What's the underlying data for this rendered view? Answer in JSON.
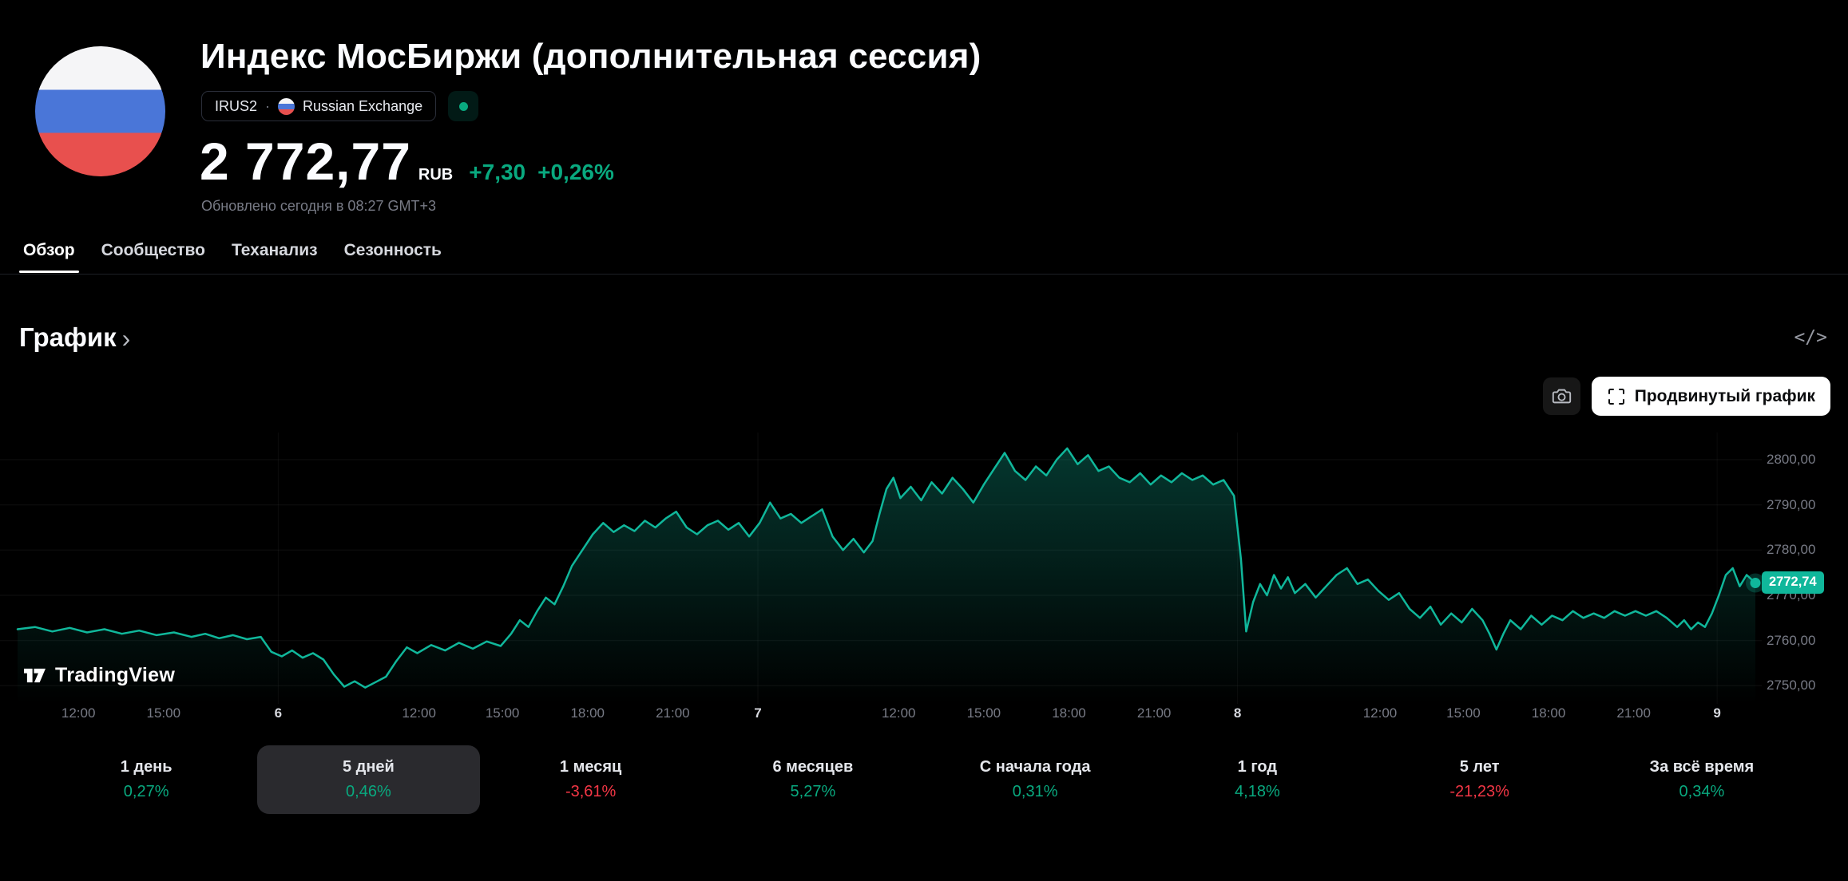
{
  "colors": {
    "bg": "#000000",
    "text_primary": "#fbfcff",
    "text_secondary": "#d6d8de",
    "text_muted": "#787b86",
    "green": "#09a97f",
    "red": "#f23645",
    "line": "#10b79b",
    "selected_bg": "#2a2a2e",
    "divider": "#1d2026",
    "badge_border": "#2a2e39"
  },
  "header": {
    "title": "Индекс МосБиржи (дополнительная сессия)",
    "symbol": "IRUS2",
    "dot_separator": "·",
    "exchange": "Russian Exchange",
    "price": "2 772,77",
    "currency": "RUB",
    "change_abs": "+7,30",
    "change_pct": "+0,26%",
    "updated": "Обновлено сегодня в 08:27 GMT+3"
  },
  "tabs": [
    {
      "label": "Обзор",
      "active": true
    },
    {
      "label": "Сообщество",
      "active": false
    },
    {
      "label": "Теханализ",
      "active": false
    },
    {
      "label": "Сезонность",
      "active": false
    }
  ],
  "chart_section": {
    "heading": "График",
    "chevron": "›",
    "embed_icon": "</>",
    "advanced_button_label": "Продвинутый график",
    "watermark": "TradingView"
  },
  "chart_data": {
    "type": "area",
    "series_name": "IRUS2",
    "title": "Индекс МосБиржи (дополнительная сессия) — 5 дней",
    "y_domain": [
      2746,
      2806
    ],
    "y_ticks": [
      2800,
      2790,
      2780,
      2770,
      2760,
      2750
    ],
    "y_tick_labels": [
      "2800,00",
      "2790,00",
      "2780,00",
      "2770,00",
      "2760,00",
      "2750,00"
    ],
    "last": {
      "value": 2772.74,
      "label": "2772,74"
    },
    "x_labels": [
      {
        "text": "12:00",
        "f": 0.035,
        "day": false
      },
      {
        "text": "15:00",
        "f": 0.084,
        "day": false
      },
      {
        "text": "6",
        "f": 0.15,
        "day": true
      },
      {
        "text": "12:00",
        "f": 0.231,
        "day": false
      },
      {
        "text": "15:00",
        "f": 0.279,
        "day": false
      },
      {
        "text": "18:00",
        "f": 0.328,
        "day": false
      },
      {
        "text": "21:00",
        "f": 0.377,
        "day": false
      },
      {
        "text": "7",
        "f": 0.426,
        "day": true
      },
      {
        "text": "12:00",
        "f": 0.507,
        "day": false
      },
      {
        "text": "15:00",
        "f": 0.556,
        "day": false
      },
      {
        "text": "18:00",
        "f": 0.605,
        "day": false
      },
      {
        "text": "21:00",
        "f": 0.654,
        "day": false
      },
      {
        "text": "8",
        "f": 0.702,
        "day": true
      },
      {
        "text": "12:00",
        "f": 0.784,
        "day": false
      },
      {
        "text": "15:00",
        "f": 0.832,
        "day": false
      },
      {
        "text": "18:00",
        "f": 0.881,
        "day": false
      },
      {
        "text": "21:00",
        "f": 0.93,
        "day": false
      },
      {
        "text": "9",
        "f": 0.978,
        "day": true
      }
    ],
    "day_gridlines": [
      0.15,
      0.426,
      0.702,
      0.978
    ],
    "points": [
      [
        0.0,
        2762.5
      ],
      [
        0.01,
        2763.0
      ],
      [
        0.02,
        2762.0
      ],
      [
        0.03,
        2762.8
      ],
      [
        0.04,
        2761.8
      ],
      [
        0.05,
        2762.5
      ],
      [
        0.06,
        2761.5
      ],
      [
        0.07,
        2762.2
      ],
      [
        0.08,
        2761.2
      ],
      [
        0.09,
        2761.8
      ],
      [
        0.1,
        2760.8
      ],
      [
        0.108,
        2761.5
      ],
      [
        0.116,
        2760.5
      ],
      [
        0.124,
        2761.2
      ],
      [
        0.132,
        2760.3
      ],
      [
        0.14,
        2760.8
      ],
      [
        0.146,
        2757.5
      ],
      [
        0.152,
        2756.5
      ],
      [
        0.158,
        2757.8
      ],
      [
        0.164,
        2756.2
      ],
      [
        0.17,
        2757.2
      ],
      [
        0.176,
        2755.8
      ],
      [
        0.182,
        2752.5
      ],
      [
        0.188,
        2749.8
      ],
      [
        0.194,
        2751.0
      ],
      [
        0.2,
        2749.6
      ],
      [
        0.206,
        2750.8
      ],
      [
        0.212,
        2752.0
      ],
      [
        0.218,
        2755.5
      ],
      [
        0.224,
        2758.5
      ],
      [
        0.23,
        2757.2
      ],
      [
        0.238,
        2759.0
      ],
      [
        0.246,
        2757.8
      ],
      [
        0.254,
        2759.5
      ],
      [
        0.262,
        2758.2
      ],
      [
        0.27,
        2759.8
      ],
      [
        0.278,
        2758.8
      ],
      [
        0.284,
        2761.5
      ],
      [
        0.289,
        2764.5
      ],
      [
        0.294,
        2763.0
      ],
      [
        0.299,
        2766.5
      ],
      [
        0.304,
        2769.5
      ],
      [
        0.309,
        2768.0
      ],
      [
        0.314,
        2772.0
      ],
      [
        0.319,
        2776.5
      ],
      [
        0.325,
        2780.0
      ],
      [
        0.331,
        2783.5
      ],
      [
        0.337,
        2786.0
      ],
      [
        0.343,
        2784.0
      ],
      [
        0.349,
        2785.5
      ],
      [
        0.355,
        2784.2
      ],
      [
        0.361,
        2786.5
      ],
      [
        0.367,
        2785.0
      ],
      [
        0.373,
        2787.0
      ],
      [
        0.379,
        2788.5
      ],
      [
        0.385,
        2785.0
      ],
      [
        0.391,
        2783.5
      ],
      [
        0.397,
        2785.5
      ],
      [
        0.403,
        2786.5
      ],
      [
        0.409,
        2784.5
      ],
      [
        0.415,
        2786.0
      ],
      [
        0.421,
        2783.0
      ],
      [
        0.427,
        2786.0
      ],
      [
        0.433,
        2790.5
      ],
      [
        0.439,
        2787.0
      ],
      [
        0.445,
        2788.0
      ],
      [
        0.451,
        2786.0
      ],
      [
        0.457,
        2787.5
      ],
      [
        0.463,
        2789.0
      ],
      [
        0.469,
        2783.0
      ],
      [
        0.475,
        2780.0
      ],
      [
        0.481,
        2782.5
      ],
      [
        0.487,
        2779.5
      ],
      [
        0.492,
        2782.0
      ],
      [
        0.496,
        2788.0
      ],
      [
        0.5,
        2793.5
      ],
      [
        0.504,
        2796.0
      ],
      [
        0.508,
        2791.5
      ],
      [
        0.514,
        2794.0
      ],
      [
        0.52,
        2791.0
      ],
      [
        0.526,
        2795.0
      ],
      [
        0.532,
        2792.5
      ],
      [
        0.538,
        2796.0
      ],
      [
        0.544,
        2793.5
      ],
      [
        0.55,
        2790.5
      ],
      [
        0.556,
        2794.5
      ],
      [
        0.562,
        2798.0
      ],
      [
        0.568,
        2801.5
      ],
      [
        0.574,
        2797.5
      ],
      [
        0.58,
        2795.5
      ],
      [
        0.586,
        2798.5
      ],
      [
        0.592,
        2796.5
      ],
      [
        0.598,
        2800.0
      ],
      [
        0.604,
        2802.5
      ],
      [
        0.61,
        2799.0
      ],
      [
        0.616,
        2801.0
      ],
      [
        0.622,
        2797.5
      ],
      [
        0.628,
        2798.5
      ],
      [
        0.634,
        2796.0
      ],
      [
        0.64,
        2795.0
      ],
      [
        0.646,
        2797.0
      ],
      [
        0.652,
        2794.5
      ],
      [
        0.658,
        2796.5
      ],
      [
        0.664,
        2795.0
      ],
      [
        0.67,
        2797.0
      ],
      [
        0.676,
        2795.5
      ],
      [
        0.682,
        2796.5
      ],
      [
        0.688,
        2794.5
      ],
      [
        0.694,
        2795.5
      ],
      [
        0.7,
        2792.0
      ],
      [
        0.704,
        2778.0
      ],
      [
        0.707,
        2762.0
      ],
      [
        0.711,
        2768.5
      ],
      [
        0.715,
        2772.5
      ],
      [
        0.719,
        2770.0
      ],
      [
        0.723,
        2774.5
      ],
      [
        0.727,
        2771.5
      ],
      [
        0.731,
        2774.0
      ],
      [
        0.735,
        2770.5
      ],
      [
        0.741,
        2772.5
      ],
      [
        0.747,
        2769.5
      ],
      [
        0.753,
        2772.0
      ],
      [
        0.759,
        2774.5
      ],
      [
        0.765,
        2776.0
      ],
      [
        0.771,
        2772.5
      ],
      [
        0.777,
        2773.5
      ],
      [
        0.783,
        2771.0
      ],
      [
        0.789,
        2769.0
      ],
      [
        0.795,
        2770.5
      ],
      [
        0.801,
        2767.0
      ],
      [
        0.807,
        2765.0
      ],
      [
        0.813,
        2767.5
      ],
      [
        0.819,
        2763.5
      ],
      [
        0.825,
        2766.0
      ],
      [
        0.831,
        2764.0
      ],
      [
        0.837,
        2767.0
      ],
      [
        0.843,
        2764.5
      ],
      [
        0.847,
        2761.5
      ],
      [
        0.851,
        2758.0
      ],
      [
        0.855,
        2761.5
      ],
      [
        0.859,
        2764.5
      ],
      [
        0.865,
        2762.5
      ],
      [
        0.871,
        2765.5
      ],
      [
        0.877,
        2763.5
      ],
      [
        0.883,
        2765.5
      ],
      [
        0.889,
        2764.5
      ],
      [
        0.895,
        2766.5
      ],
      [
        0.901,
        2765.0
      ],
      [
        0.907,
        2766.0
      ],
      [
        0.913,
        2765.0
      ],
      [
        0.919,
        2766.5
      ],
      [
        0.925,
        2765.5
      ],
      [
        0.931,
        2766.5
      ],
      [
        0.937,
        2765.5
      ],
      [
        0.943,
        2766.5
      ],
      [
        0.949,
        2765.0
      ],
      [
        0.955,
        2763.0
      ],
      [
        0.959,
        2764.5
      ],
      [
        0.963,
        2762.5
      ],
      [
        0.967,
        2764.0
      ],
      [
        0.971,
        2763.0
      ],
      [
        0.975,
        2766.0
      ],
      [
        0.979,
        2770.0
      ],
      [
        0.983,
        2774.5
      ],
      [
        0.987,
        2776.0
      ],
      [
        0.991,
        2772.0
      ],
      [
        0.995,
        2774.5
      ],
      [
        1.0,
        2772.74
      ]
    ]
  },
  "ranges": [
    {
      "label": "1 день",
      "pct": "0,27%",
      "dir": "up",
      "selected": false
    },
    {
      "label": "5 дней",
      "pct": "0,46%",
      "dir": "up",
      "selected": true
    },
    {
      "label": "1 месяц",
      "pct": "-3,61%",
      "dir": "down",
      "selected": false
    },
    {
      "label": "6 месяцев",
      "pct": "5,27%",
      "dir": "up",
      "selected": false
    },
    {
      "label": "С начала года",
      "pct": "0,31%",
      "dir": "up",
      "selected": false
    },
    {
      "label": "1 год",
      "pct": "4,18%",
      "dir": "up",
      "selected": false
    },
    {
      "label": "5 лет",
      "pct": "-21,23%",
      "dir": "down",
      "selected": false
    },
    {
      "label": "За всё время",
      "pct": "0,34%",
      "dir": "up",
      "selected": false
    }
  ]
}
